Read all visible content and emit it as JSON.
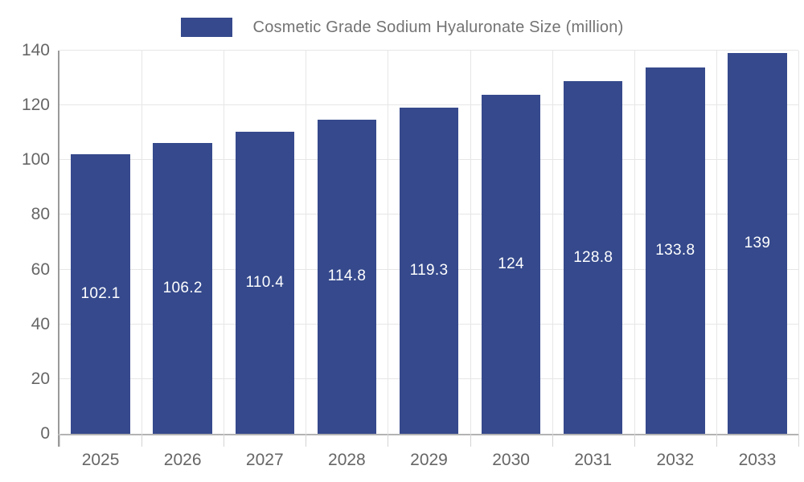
{
  "chart_data": {
    "type": "bar",
    "title": "",
    "legend": "Cosmetic Grade Sodium Hyaluronate Size (million)",
    "legend_position": "top",
    "categories": [
      "2025",
      "2026",
      "2027",
      "2028",
      "2029",
      "2030",
      "2031",
      "2032",
      "2033"
    ],
    "values": [
      102.1,
      106.2,
      110.4,
      114.8,
      119.3,
      124,
      128.8,
      133.8,
      139
    ],
    "value_labels": [
      "102.1",
      "106.2",
      "110.4",
      "114.8",
      "119.3",
      "124",
      "128.8",
      "133.8",
      "139"
    ],
    "xlabel": "",
    "ylabel": "",
    "ylim": [
      0,
      140
    ],
    "yticks": [
      0,
      20,
      40,
      60,
      80,
      100,
      120,
      140
    ],
    "grid": true,
    "colors": {
      "bar": "#35498c",
      "bar_label_text": "#ffffff",
      "grid_line": "#e6e6e6",
      "axis_line_left": "#9a9a9a",
      "axis_line_bottom": "#b3b3b3",
      "tick_text": "#666666",
      "legend_text": "#737373"
    },
    "bar_width_fraction": 0.72
  }
}
